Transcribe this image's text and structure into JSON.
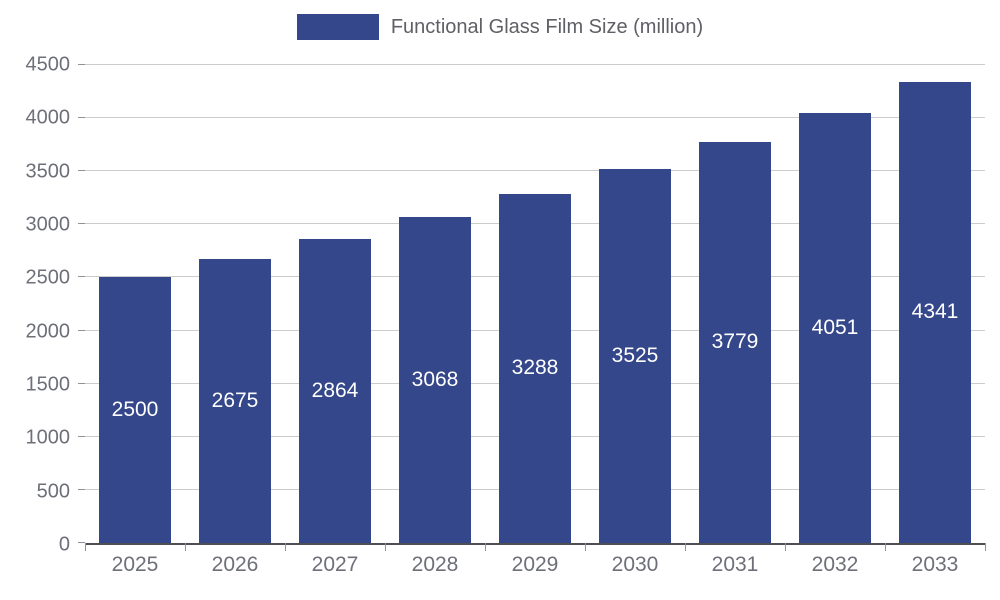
{
  "legend": {
    "label": "Functional Glass Film Size (million)"
  },
  "chart_data": {
    "type": "bar",
    "title": "Functional Glass Film Size (million)",
    "categories": [
      "2025",
      "2026",
      "2027",
      "2028",
      "2029",
      "2030",
      "2031",
      "2032",
      "2033"
    ],
    "values": [
      2500,
      2675,
      2864,
      3068,
      3288,
      3525,
      3779,
      4051,
      4341
    ],
    "xlabel": "",
    "ylabel": "",
    "ylim": [
      0,
      4500
    ],
    "ytick_step": 500,
    "grid": true,
    "legend_position": "top-center",
    "bar_label_position": "inside-center",
    "colors": {
      "bar": "#35478B",
      "bar_label": "#FFFFFF",
      "axis_label": "#6E7079",
      "gridline": "#CCCCCC",
      "axis_line": "#4D4F55"
    }
  }
}
